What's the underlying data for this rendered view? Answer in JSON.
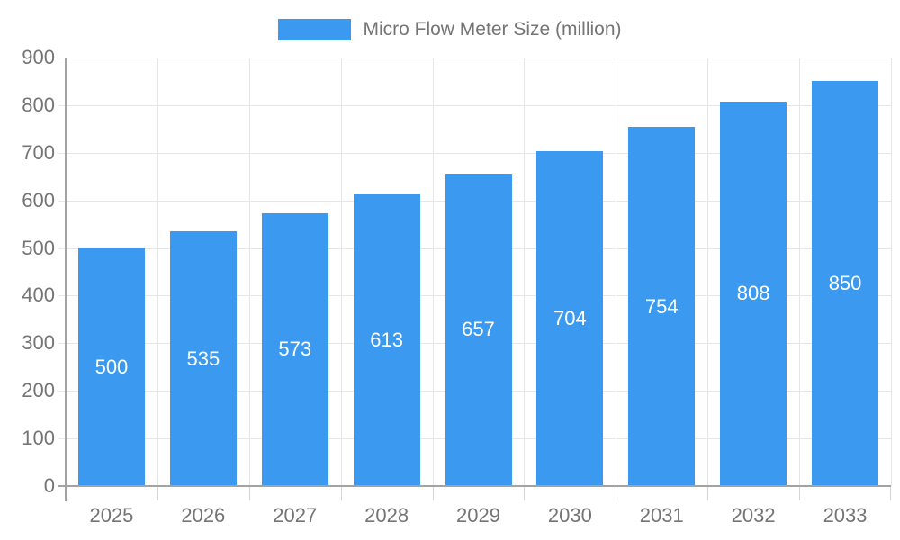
{
  "chart_data": {
    "type": "bar",
    "title": "",
    "categories": [
      "2025",
      "2026",
      "2027",
      "2028",
      "2029",
      "2030",
      "2031",
      "2032",
      "2033"
    ],
    "series": [
      {
        "name": "Micro Flow Meter Size (million)",
        "values": [
          500,
          535,
          573,
          613,
          657,
          704,
          754,
          808,
          850
        ],
        "color": "#3b99f0"
      }
    ],
    "xlabel": "",
    "ylabel": "",
    "ylim": [
      0,
      900
    ],
    "ytick_step": 100,
    "ytick_labels": [
      "0",
      "100",
      "200",
      "300",
      "400",
      "500",
      "600",
      "700",
      "800",
      "900"
    ],
    "grid": true,
    "value_labels_shown": true,
    "legend_position": "top",
    "colors": {
      "bar": "#3b99f0",
      "bar_value_text": "#ffffff",
      "axis_line": "#a3a3a3",
      "grid_line": "#e6e6e6",
      "tick_line": "#d6d6d6",
      "label_text": "#757575",
      "background": "#ffffff"
    }
  }
}
